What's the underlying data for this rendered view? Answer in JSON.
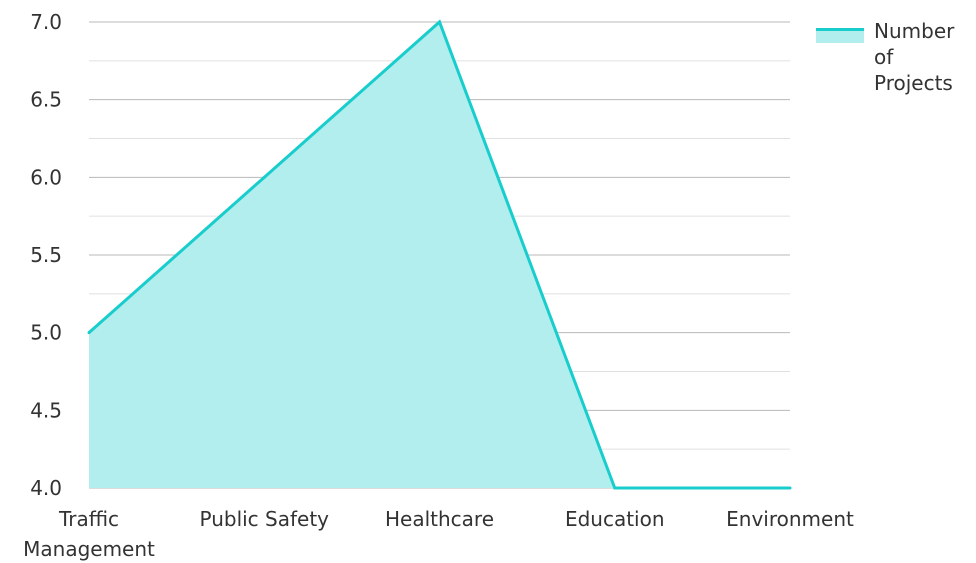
{
  "chart_data": {
    "type": "area",
    "categories": [
      "Traffic Management",
      "Public Safety",
      "Healthcare",
      "Education",
      "Environment"
    ],
    "series": [
      {
        "name": "Number of Projects",
        "values": [
          5,
          6,
          7,
          4,
          4
        ]
      }
    ],
    "yticks": [
      "4.0",
      "4.5",
      "5.0",
      "5.5",
      "6.0",
      "6.5",
      "7.0"
    ],
    "ylim": [
      4,
      7
    ],
    "grid": true,
    "legend_position": "top-right",
    "colors": {
      "line": "#19cdcd",
      "fill": "#b2eeee",
      "grid": "#b8b8b8",
      "minor_grid": "#e0e0e0"
    }
  }
}
